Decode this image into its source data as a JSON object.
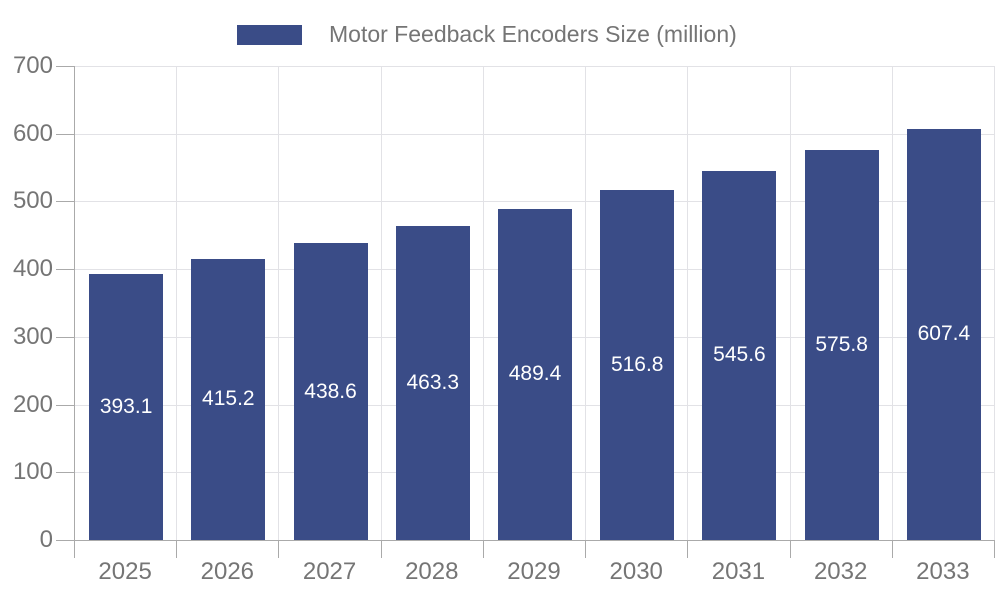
{
  "colors": {
    "bar": "#3a4c87",
    "grid": "#e2e2e6",
    "axis": "#aaaaaa",
    "text": "#757575",
    "value_label": "#ffffff",
    "background": "#ffffff"
  },
  "chart_data": {
    "type": "bar",
    "title": "Motor Feedback Encoders Size (million)",
    "series_name": "Motor Feedback Encoders Size (million)",
    "categories": [
      "2025",
      "2026",
      "2027",
      "2028",
      "2029",
      "2030",
      "2031",
      "2032",
      "2033"
    ],
    "values": [
      393.1,
      415.2,
      438.6,
      463.3,
      489.4,
      516.8,
      545.6,
      575.8,
      607.4
    ],
    "xlabel": "",
    "ylabel": "",
    "ylim": [
      0,
      700
    ],
    "yticks": [
      0,
      100,
      200,
      300,
      400,
      500,
      600,
      700
    ],
    "grid": true,
    "legend_position": "top",
    "value_label_position": "inside-center",
    "value_label_format": "one-decimal"
  }
}
